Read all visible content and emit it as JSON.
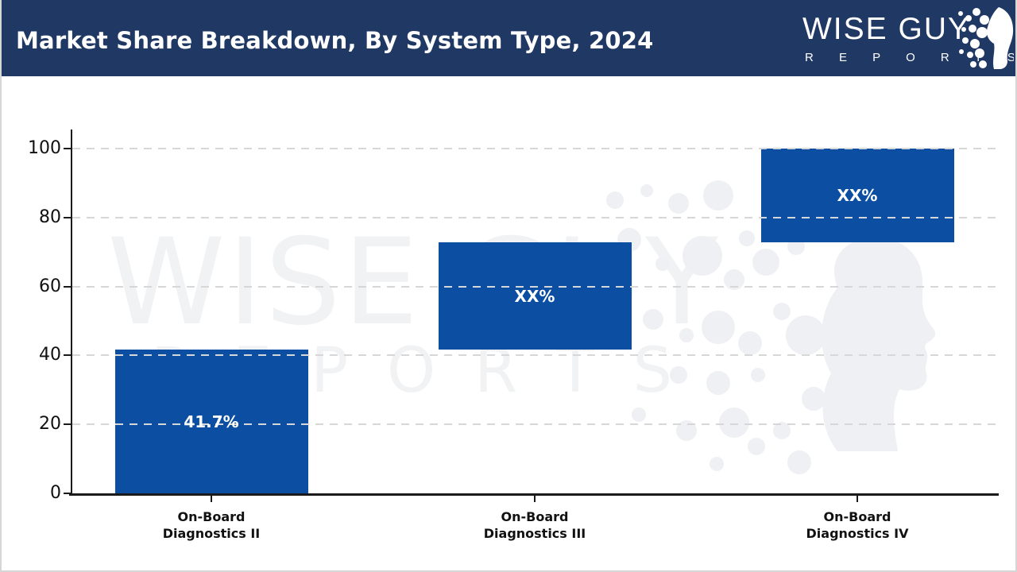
{
  "header": {
    "title": "Market Share Breakdown, By System Type, 2024"
  },
  "logo": {
    "line1": "WISE GUY",
    "line2": "R E P O R T S"
  },
  "watermark": {
    "line1": "WISE GUY",
    "line2": "R E P O R T S"
  },
  "chart_data": {
    "type": "bar",
    "subtype": "floating-segment breakdown (waterfall-style, segments stack to 100%)",
    "title": "Market Share Breakdown, By System Type, 2024",
    "categories": [
      "On-Board Diagnostics II",
      "On-Board Diagnostics III",
      "On-Board Diagnostics IV"
    ],
    "segments": [
      {
        "category_lines": [
          "On-Board",
          "Diagnostics II"
        ],
        "start": 0,
        "end": 41.7,
        "label": "41.7%"
      },
      {
        "category_lines": [
          "On-Board",
          "Diagnostics III"
        ],
        "start": 41.7,
        "end": 72.7,
        "label": "XX%"
      },
      {
        "category_lines": [
          "On-Board",
          "Diagnostics IV"
        ],
        "start": 72.7,
        "end": 100,
        "label": "XX%"
      }
    ],
    "yticks": [
      0,
      20,
      40,
      60,
      80,
      100
    ],
    "ylim": [
      0,
      105
    ],
    "xlabel": "",
    "ylabel": "",
    "legend": "none",
    "grid": "horizontal dashed, drawn above bars",
    "colors": {
      "bar": "#0B4EA2",
      "bar_label": "#FFFFFF",
      "header_band": "#203864",
      "axis": "#1A1A1A",
      "gridline": "#D7D7D7",
      "watermark": "#F1F2F4"
    }
  }
}
